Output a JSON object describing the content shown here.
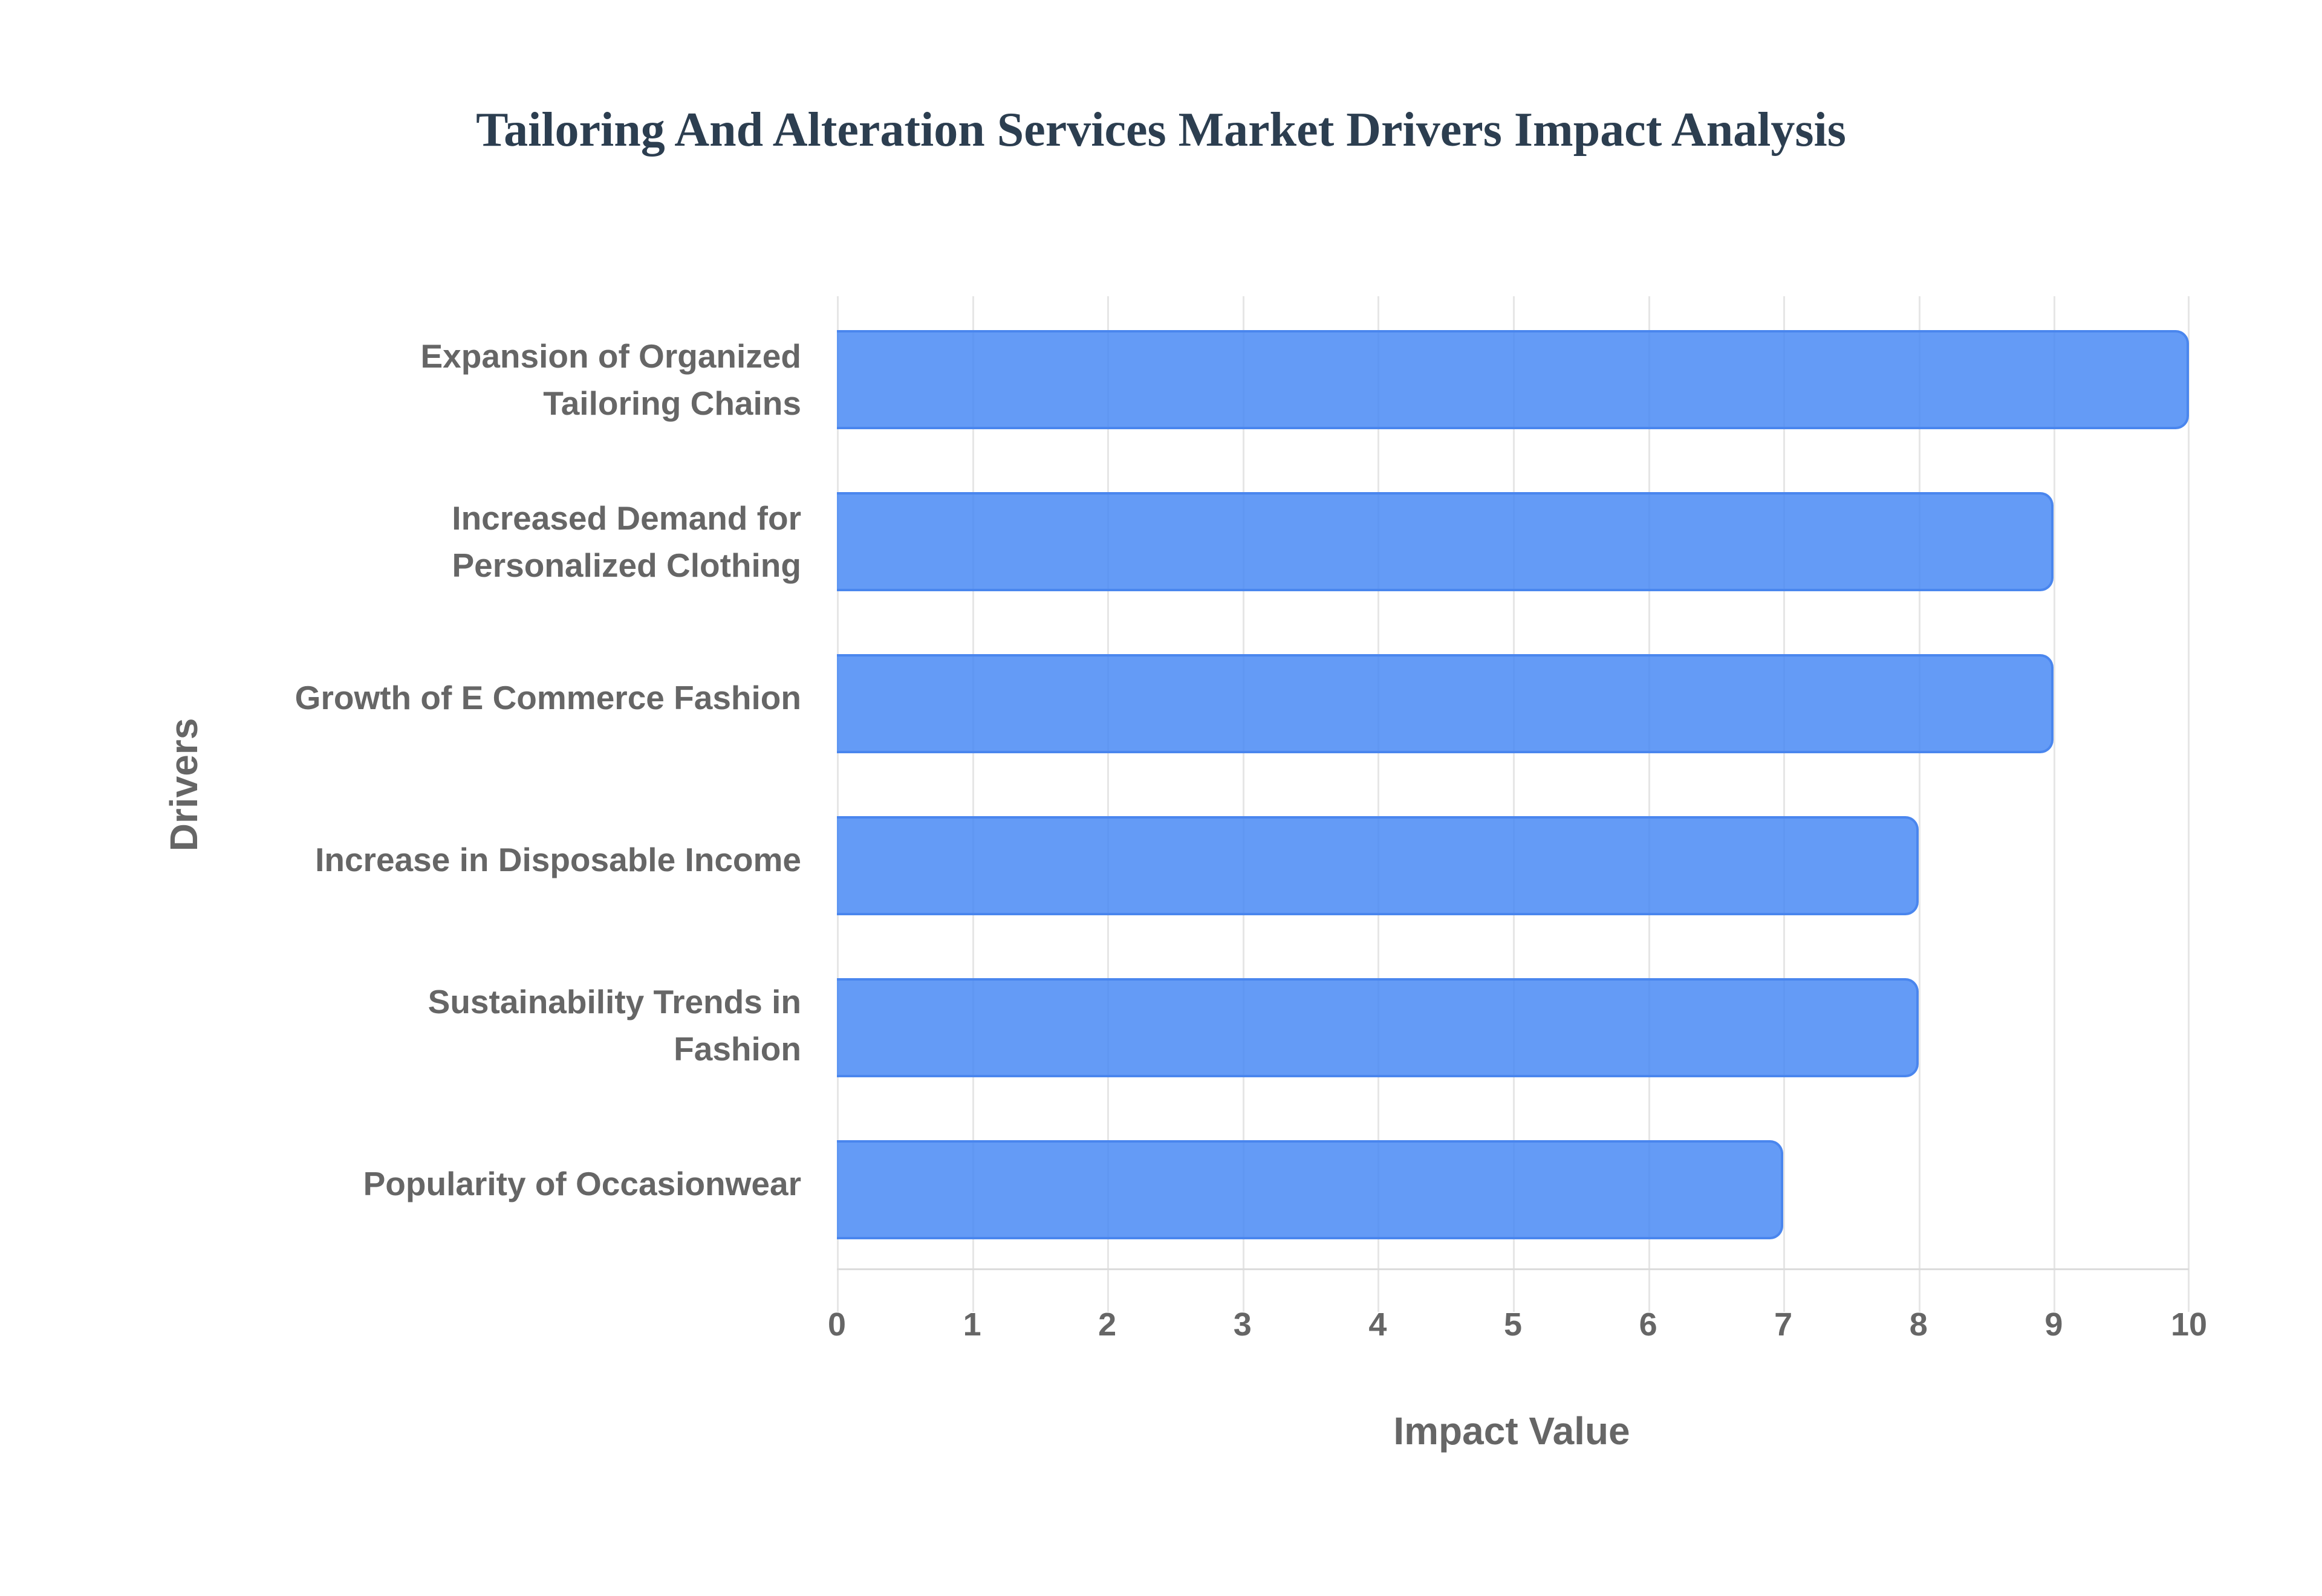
{
  "title": "Tailoring And Alteration Services Market Drivers Impact Analysis",
  "colors": {
    "bar_fill": "#6199f4",
    "bar_border": "#4a86ee",
    "title": "#2c3e50",
    "axis_text": "#666666",
    "grid": "#e6e6e6"
  },
  "axes": {
    "x_title": "Impact Value",
    "y_title": "Drivers",
    "x_ticks": [
      "0",
      "1",
      "2",
      "3",
      "4",
      "5",
      "6",
      "7",
      "8",
      "9",
      "10"
    ]
  },
  "categories": [
    {
      "line1": "Expansion of Organized",
      "line2": "Tailoring Chains",
      "value": 10
    },
    {
      "line1": "Increased Demand for",
      "line2": "Personalized Clothing",
      "value": 9
    },
    {
      "line1": "Growth of E Commerce Fashion",
      "line2": "",
      "value": 9
    },
    {
      "line1": "Increase in Disposable Income",
      "line2": "",
      "value": 8
    },
    {
      "line1": "Sustainability Trends in",
      "line2": "Fashion",
      "value": 8
    },
    {
      "line1": "Popularity of Occasionwear",
      "line2": "",
      "value": 7
    }
  ],
  "chart_data": {
    "type": "bar",
    "orientation": "horizontal",
    "title": "Tailoring And Alteration Services Market Drivers Impact Analysis",
    "categories": [
      "Expansion of Organized Tailoring Chains",
      "Increased Demand for Personalized Clothing",
      "Growth of E Commerce Fashion",
      "Increase in Disposable Income",
      "Sustainability Trends in Fashion",
      "Popularity of Occasionwear"
    ],
    "values": [
      10,
      9,
      9,
      8,
      8,
      7
    ],
    "xlabel": "Impact Value",
    "ylabel": "Drivers",
    "xlim": [
      0,
      10
    ],
    "x_ticks": [
      0,
      1,
      2,
      3,
      4,
      5,
      6,
      7,
      8,
      9,
      10
    ],
    "grid": true,
    "legend": "none"
  }
}
